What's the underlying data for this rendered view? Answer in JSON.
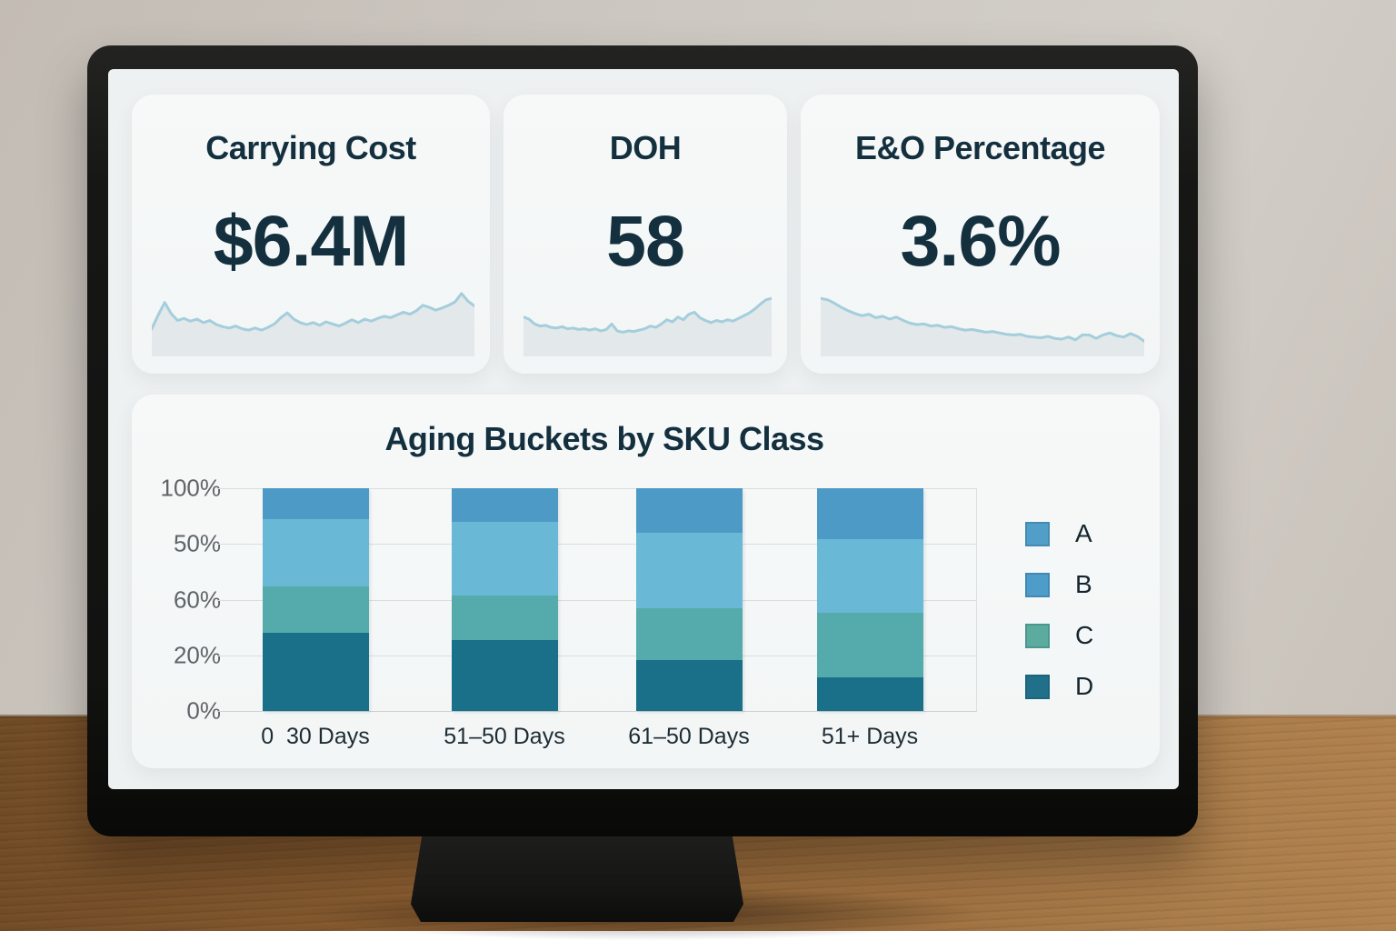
{
  "scene": {
    "wall_color": "#cdc8c2",
    "desk_color": "#9a6c3c",
    "monitor_bezel_color": "#141413",
    "screen_bg": "#eef1f1"
  },
  "kpi_cards": [
    {
      "title": "Carrying Cost",
      "value": "$6.4M",
      "sparkline": [
        40,
        60,
        78,
        62,
        52,
        55,
        51,
        54,
        49,
        52,
        46,
        43,
        41,
        44,
        40,
        38,
        41,
        38,
        42,
        47,
        56,
        63,
        54,
        49,
        46,
        49,
        45,
        50,
        47,
        44,
        48,
        53,
        49,
        54,
        51,
        55,
        58,
        56,
        60,
        64,
        61,
        66,
        74,
        71,
        67,
        70,
        74,
        79,
        91,
        80,
        73
      ]
    },
    {
      "title": "DOH",
      "value": "58",
      "sparkline": [
        57,
        54,
        47,
        44,
        45,
        42,
        41,
        43,
        40,
        41,
        39,
        40,
        38,
        40,
        37,
        39,
        47,
        37,
        35,
        37,
        36,
        38,
        40,
        44,
        42,
        47,
        53,
        50,
        57,
        53,
        61,
        64,
        56,
        52,
        49,
        52,
        50,
        53,
        51,
        55,
        59,
        63,
        69,
        76,
        82,
        84
      ]
    },
    {
      "title": "E&O Percentage",
      "value": "3.6%",
      "sparkline": [
        84,
        82,
        77,
        71,
        66,
        62,
        59,
        61,
        56,
        58,
        54,
        57,
        52,
        48,
        46,
        47,
        44,
        45,
        42,
        43,
        40,
        38,
        39,
        37,
        35,
        36,
        34,
        32,
        31,
        32,
        29,
        28,
        27,
        29,
        26,
        25,
        28,
        24,
        31,
        31,
        26,
        31,
        34,
        30,
        28,
        33,
        29,
        22
      ]
    }
  ],
  "sparkline_style": {
    "line_color": "#a4cedc",
    "fill_color": "#e3e8ea"
  },
  "chart_data": {
    "type": "bar",
    "stacked": true,
    "title": "Aging Buckets by SKU Class",
    "categories": [
      "0  30 Days",
      "51–50 Days",
      "61–50 Days",
      "51+ Days"
    ],
    "series": [
      {
        "name": "A",
        "color": "#4e9ac6",
        "legend_color": "#519ec9",
        "values": [
          14,
          15,
          20,
          23
        ]
      },
      {
        "name": "B",
        "color": "#69b8d5",
        "legend_color": "#4e9cca",
        "values": [
          30,
          33,
          34,
          33
        ]
      },
      {
        "name": "C",
        "color": "#55abab",
        "legend_color": "#5cab9f",
        "values": [
          21,
          20,
          23,
          29
        ]
      },
      {
        "name": "D",
        "color": "#1b7089",
        "legend_color": "#20708a",
        "values": [
          35,
          32,
          23,
          15
        ]
      }
    ],
    "stack_order_top_to_bottom": [
      "A",
      "B",
      "C",
      "D"
    ],
    "ytick_labels": [
      "100%",
      "50%",
      "60%",
      "20%",
      "0%"
    ],
    "ylim": [
      0,
      100
    ],
    "unit": "%",
    "grid": "horizontal",
    "legend_position": "right"
  }
}
